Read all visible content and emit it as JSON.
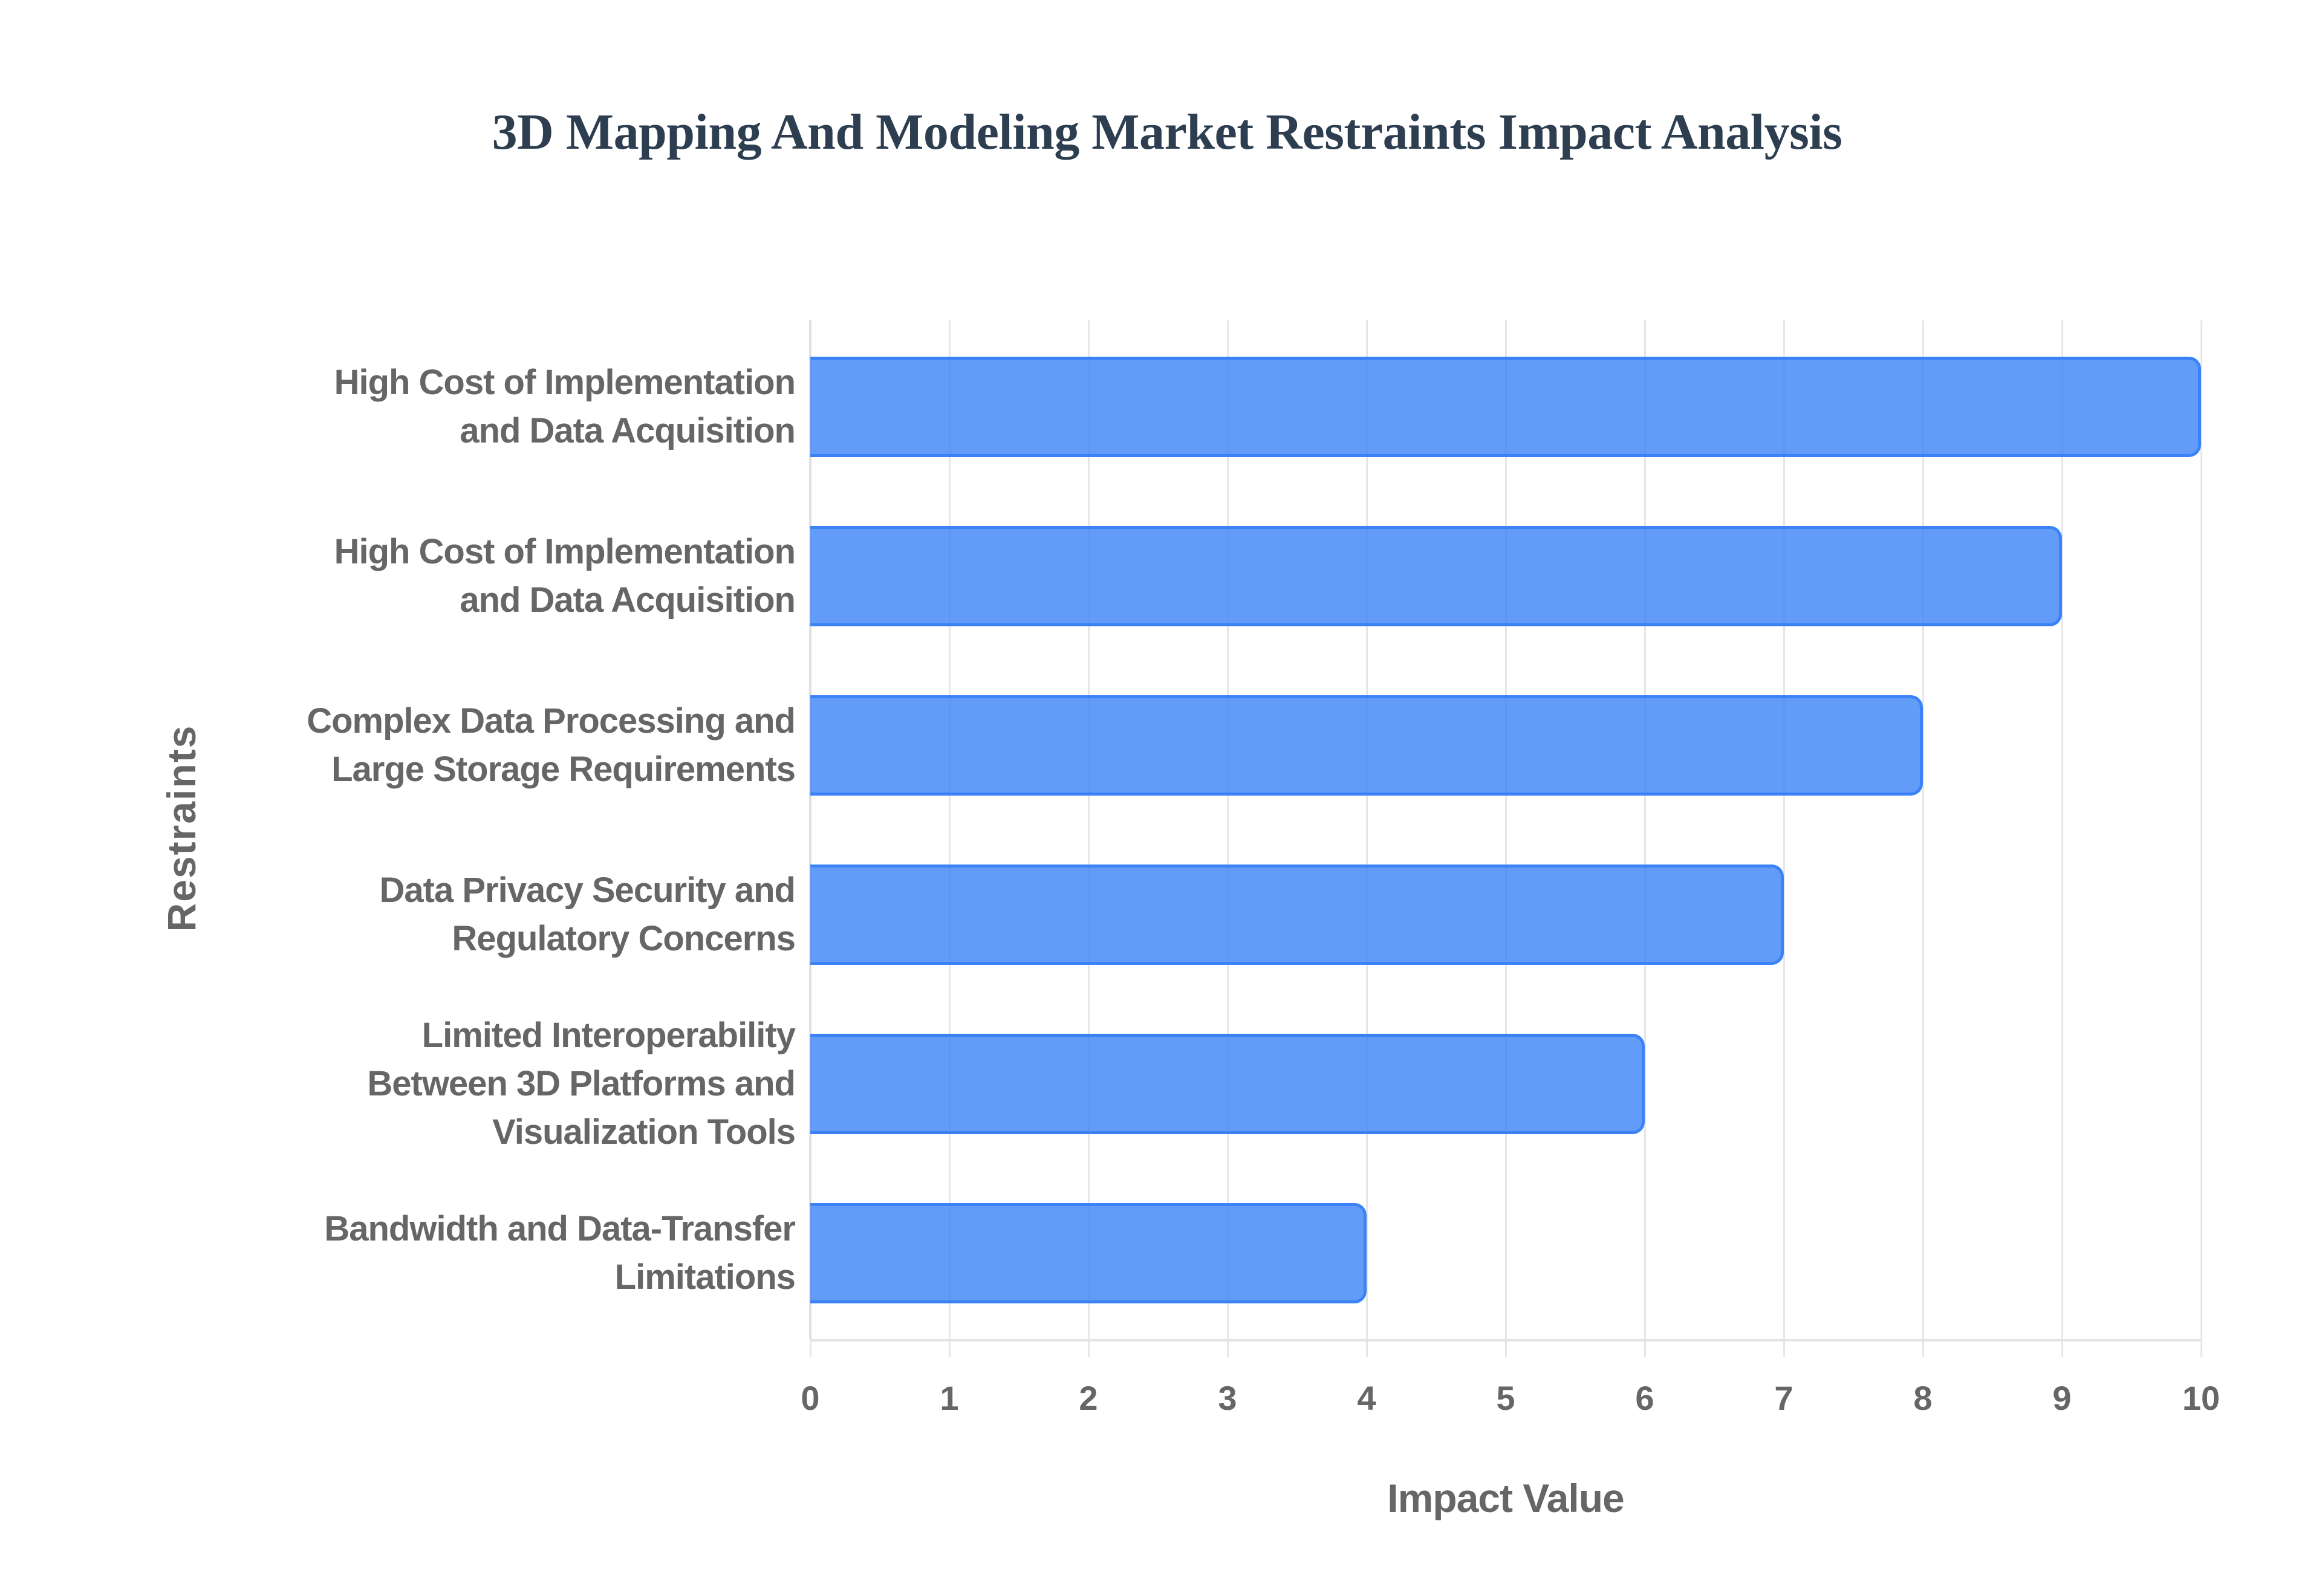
{
  "chart": {
    "title": "3D Mapping And Modeling Market Restraints Impact Analysis",
    "xlabel": "Impact Value",
    "ylabel": "Restraints",
    "x_ticks": [
      "0",
      "1",
      "2",
      "3",
      "4",
      "5",
      "6",
      "7",
      "8",
      "9",
      "10"
    ],
    "bar_color": "#3b82f6",
    "bar_fill": "#6199f5",
    "title_color": "#2c3e50",
    "label_color": "#666666",
    "categories": [
      {
        "line1": "High Cost of Implementation",
        "line2": "and Data Acquisition",
        "line3": "",
        "value": 10
      },
      {
        "line1": "High Cost of Implementation",
        "line2": "and Data Acquisition",
        "line3": "",
        "value": 9
      },
      {
        "line1": "Complex Data Processing and",
        "line2": "Large Storage Requirements",
        "line3": "",
        "value": 8
      },
      {
        "line1": "Data Privacy Security and",
        "line2": "Regulatory Concerns",
        "line3": "",
        "value": 7
      },
      {
        "line1": "Limited Interoperability",
        "line2": "Between 3D Platforms and",
        "line3": "Visualization Tools",
        "value": 6
      },
      {
        "line1": "Bandwidth and Data-Transfer",
        "line2": "Limitations",
        "line3": "",
        "value": 4
      }
    ]
  },
  "chart_data": {
    "type": "bar",
    "orientation": "horizontal",
    "title": "3D Mapping And Modeling Market Restraints Impact Analysis",
    "xlabel": "Impact Value",
    "ylabel": "Restraints",
    "categories": [
      "High Cost of Implementation and Data Acquisition",
      "High Cost of Implementation and Data Acquisition",
      "Complex Data Processing and Large Storage Requirements",
      "Data Privacy Security and Regulatory Concerns",
      "Limited Interoperability Between 3D Platforms and Visualization Tools",
      "Bandwidth and Data-Transfer Limitations"
    ],
    "values": [
      10,
      9,
      8,
      7,
      6,
      4
    ],
    "xlim": [
      0,
      10
    ],
    "x_ticks": [
      0,
      1,
      2,
      3,
      4,
      5,
      6,
      7,
      8,
      9,
      10
    ],
    "grid": "vertical gridlines on",
    "legend": "none"
  }
}
